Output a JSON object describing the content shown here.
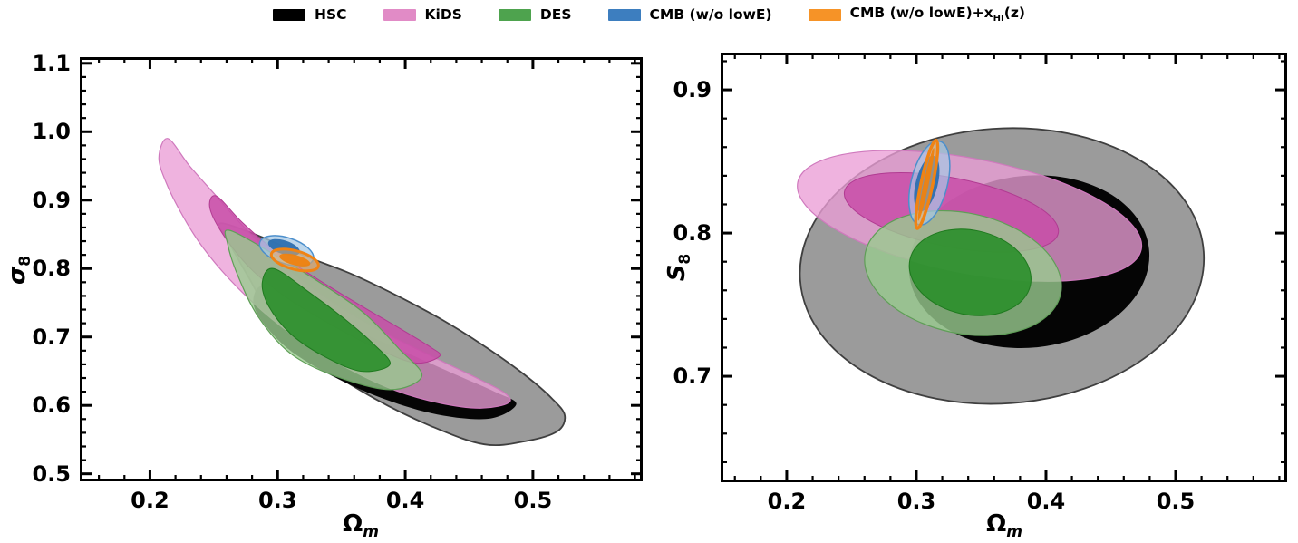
{
  "figure": {
    "background": "#ffffff"
  },
  "legend": {
    "items": [
      {
        "name": "hsc",
        "color": "#000000",
        "label_parts": [
          {
            "t": "HSC"
          }
        ]
      },
      {
        "name": "kids",
        "color": "#e18bc6",
        "label_parts": [
          {
            "t": "KiDS"
          }
        ]
      },
      {
        "name": "des",
        "color": "#4ea34e",
        "label_parts": [
          {
            "t": "DES"
          }
        ]
      },
      {
        "name": "cmb-wo-lowe",
        "color": "#3d7ebf",
        "label_parts": [
          {
            "t": "CMB (w/o lowE)"
          }
        ]
      },
      {
        "name": "cmb-wo-lowe-xhi",
        "color": "#f69327",
        "label_parts": [
          {
            "t": "CMB (w/o lowE)+"
          },
          {
            "t": "x",
            "i": true
          },
          {
            "t": "HI",
            "sub": true
          },
          {
            "t": "("
          },
          {
            "t": "z",
            "i": true
          },
          {
            "t": ")"
          }
        ]
      }
    ]
  },
  "chart_data": {
    "type": "contour",
    "title": "",
    "panels": [
      {
        "id": "sigma8-vs-omegam",
        "xlabel_parts": [
          {
            "t": "Ω"
          },
          {
            "t": "m",
            "sub": true,
            "i": true
          }
        ],
        "ylabel_parts": [
          {
            "t": "σ",
            "i": true
          },
          {
            "t": "8",
            "sub": true
          }
        ],
        "xlim": [
          0.145,
          0.586
        ],
        "ylim": [
          0.489,
          1.109
        ],
        "xticks": [
          0.2,
          0.3,
          0.4,
          0.5
        ],
        "xtick_labels": [
          "0.2",
          "0.3",
          "0.4",
          "0.5"
        ],
        "yticks": [
          0.5,
          0.6,
          0.7,
          0.8,
          0.9,
          1.0,
          1.1
        ],
        "ytick_labels": [
          "0.5",
          "0.6",
          "0.7",
          "0.8",
          "0.9",
          "1.0",
          "1.1"
        ],
        "minor_xticks": [
          0.16,
          0.18,
          0.22,
          0.24,
          0.26,
          0.28,
          0.32,
          0.34,
          0.36,
          0.38,
          0.42,
          0.44,
          0.46,
          0.48,
          0.52,
          0.54,
          0.56,
          0.58
        ],
        "minor_yticks": [
          0.52,
          0.54,
          0.56,
          0.58,
          0.62,
          0.64,
          0.66,
          0.68,
          0.72,
          0.74,
          0.76,
          0.78,
          0.82,
          0.84,
          0.86,
          0.88,
          0.92,
          0.94,
          0.96,
          0.98,
          1.02,
          1.04,
          1.06,
          1.08
        ],
        "contours": [
          {
            "name": "hsc-95",
            "shape": "polygon",
            "fill": "#9b9b9b",
            "opacity": 1,
            "stroke": "#3f3f3f",
            "stroke_width": 1.8,
            "points": [
              [
                0.255,
                0.866
              ],
              [
                0.285,
                0.848
              ],
              [
                0.322,
                0.818
              ],
              [
                0.358,
                0.792
              ],
              [
                0.394,
                0.76
              ],
              [
                0.43,
                0.724
              ],
              [
                0.464,
                0.684
              ],
              [
                0.494,
                0.644
              ],
              [
                0.515,
                0.61
              ],
              [
                0.525,
                0.585
              ],
              [
                0.519,
                0.562
              ],
              [
                0.495,
                0.548
              ],
              [
                0.462,
                0.543
              ],
              [
                0.42,
                0.57
              ],
              [
                0.376,
                0.61
              ],
              [
                0.332,
                0.662
              ],
              [
                0.298,
                0.722
              ],
              [
                0.278,
                0.785
              ],
              [
                0.262,
                0.838
              ]
            ]
          },
          {
            "name": "hsc-68",
            "shape": "polygon",
            "fill": "#050505",
            "opacity": 1,
            "stroke": "none",
            "stroke_width": 0,
            "points": [
              [
                0.29,
                0.775
              ],
              [
                0.32,
                0.745
              ],
              [
                0.355,
                0.715
              ],
              [
                0.395,
                0.682
              ],
              [
                0.437,
                0.647
              ],
              [
                0.47,
                0.62
              ],
              [
                0.487,
                0.602
              ],
              [
                0.467,
                0.581
              ],
              [
                0.43,
                0.585
              ],
              [
                0.39,
                0.605
              ],
              [
                0.348,
                0.638
              ],
              [
                0.31,
                0.68
              ],
              [
                0.287,
                0.725
              ],
              [
                0.281,
                0.755
              ]
            ]
          },
          {
            "name": "kids-95",
            "shape": "polygon",
            "fill": "#ea9ed6",
            "opacity": 0.78,
            "stroke": "#cf79bd",
            "stroke_width": 1.2,
            "points": [
              [
                0.214,
                0.99
              ],
              [
                0.231,
                0.95
              ],
              [
                0.25,
                0.91
              ],
              [
                0.27,
                0.868
              ],
              [
                0.292,
                0.826
              ],
              [
                0.318,
                0.785
              ],
              [
                0.348,
                0.745
              ],
              [
                0.385,
                0.705
              ],
              [
                0.425,
                0.668
              ],
              [
                0.458,
                0.638
              ],
              [
                0.478,
                0.618
              ],
              [
                0.481,
                0.604
              ],
              [
                0.46,
                0.596
              ],
              [
                0.428,
                0.603
              ],
              [
                0.392,
                0.622
              ],
              [
                0.355,
                0.654
              ],
              [
                0.318,
                0.695
              ],
              [
                0.288,
                0.738
              ],
              [
                0.262,
                0.785
              ],
              [
                0.241,
                0.832
              ],
              [
                0.226,
                0.876
              ],
              [
                0.213,
                0.924
              ],
              [
                0.207,
                0.962
              ]
            ]
          },
          {
            "name": "kids-68",
            "shape": "polygon",
            "fill": "#c84da8",
            "opacity": 0.85,
            "stroke": "#b13b92",
            "stroke_width": 1,
            "points": [
              [
                0.252,
                0.906
              ],
              [
                0.272,
                0.868
              ],
              [
                0.298,
                0.826
              ],
              [
                0.33,
                0.786
              ],
              [
                0.366,
                0.745
              ],
              [
                0.398,
                0.71
              ],
              [
                0.42,
                0.685
              ],
              [
                0.427,
                0.672
              ],
              [
                0.408,
                0.662
              ],
              [
                0.378,
                0.683
              ],
              [
                0.344,
                0.716
              ],
              [
                0.31,
                0.754
              ],
              [
                0.281,
                0.796
              ],
              [
                0.259,
                0.845
              ],
              [
                0.247,
                0.888
              ]
            ]
          },
          {
            "name": "des-95",
            "shape": "polygon",
            "fill": "#98cb8f",
            "opacity": 0.8,
            "stroke": "#5f9e57",
            "stroke_width": 1.2,
            "points": [
              [
                0.262,
                0.856
              ],
              [
                0.296,
                0.822
              ],
              [
                0.331,
                0.782
              ],
              [
                0.367,
                0.736
              ],
              [
                0.395,
                0.683
              ],
              [
                0.413,
                0.643
              ],
              [
                0.388,
                0.623
              ],
              [
                0.345,
                0.643
              ],
              [
                0.31,
                0.676
              ],
              [
                0.285,
                0.729
              ],
              [
                0.269,
                0.789
              ],
              [
                0.261,
                0.835
              ]
            ]
          },
          {
            "name": "des-68",
            "shape": "polygon",
            "fill": "#2c8f2c",
            "opacity": 0.92,
            "stroke": "#1f7a1f",
            "stroke_width": 1,
            "points": [
              [
                0.297,
                0.8
              ],
              [
                0.325,
                0.765
              ],
              [
                0.352,
                0.727
              ],
              [
                0.375,
                0.69
              ],
              [
                0.388,
                0.66
              ],
              [
                0.365,
                0.65
              ],
              [
                0.335,
                0.673
              ],
              [
                0.31,
                0.705
              ],
              [
                0.293,
                0.745
              ],
              [
                0.288,
                0.78
              ]
            ]
          },
          {
            "name": "cmb-95",
            "shape": "ellipse",
            "cx": 0.307,
            "cy": 0.826,
            "rx": 0.022,
            "ry": 0.019,
            "rot": 18,
            "fill": "#a6c8e6",
            "opacity": 0.75,
            "stroke": "#4c8fcc",
            "stroke_width": 1.5
          },
          {
            "name": "cmb-68",
            "shape": "ellipse",
            "cx": 0.305,
            "cy": 0.831,
            "rx": 0.013,
            "ry": 0.01,
            "rot": 18,
            "fill": "#2d6fb0",
            "opacity": 0.95,
            "stroke": "none",
            "stroke_width": 0
          },
          {
            "name": "cmb-xhi-95",
            "shape": "ellipse",
            "cx": 0.3135,
            "cy": 0.8125,
            "rx": 0.019,
            "ry": 0.0135,
            "rot": 15,
            "fill": "#f6ad5e",
            "opacity": 0.5,
            "stroke": "#f08314",
            "stroke_width": 3
          },
          {
            "name": "cmb-xhi-68",
            "shape": "ellipse",
            "cx": 0.3135,
            "cy": 0.8125,
            "rx": 0.0125,
            "ry": 0.0075,
            "rot": 15,
            "fill": "#ee820f",
            "opacity": 0.95,
            "stroke": "none",
            "stroke_width": 0
          }
        ]
      },
      {
        "id": "S8-vs-omegam",
        "xlabel_parts": [
          {
            "t": "Ω"
          },
          {
            "t": "m",
            "sub": true,
            "i": true
          }
        ],
        "ylabel_parts": [
          {
            "t": "S",
            "i": true
          },
          {
            "t": "8",
            "sub": true
          }
        ],
        "xlim": [
          0.149,
          0.586
        ],
        "ylim": [
          0.626,
          0.926
        ],
        "xticks": [
          0.2,
          0.3,
          0.4,
          0.5
        ],
        "xtick_labels": [
          "0.2",
          "0.3",
          "0.4",
          "0.5"
        ],
        "yticks": [
          0.7,
          0.8,
          0.9
        ],
        "ytick_labels": [
          "0.7",
          "0.8",
          "0.9"
        ],
        "minor_xticks": [
          0.16,
          0.18,
          0.22,
          0.24,
          0.26,
          0.28,
          0.32,
          0.34,
          0.36,
          0.38,
          0.42,
          0.44,
          0.46,
          0.48,
          0.52,
          0.54,
          0.56,
          0.58
        ],
        "minor_yticks": [
          0.64,
          0.66,
          0.68,
          0.72,
          0.74,
          0.76,
          0.78,
          0.82,
          0.84,
          0.86,
          0.88,
          0.92
        ],
        "contours": [
          {
            "name": "hsc-95",
            "shape": "ellipse",
            "cx": 0.366,
            "cy": 0.777,
            "rx": 0.156,
            "ry": 0.096,
            "rot": -4,
            "fill": "#9b9b9b",
            "opacity": 1,
            "stroke": "#3f3f3f",
            "stroke_width": 1.8
          },
          {
            "name": "hsc-68",
            "shape": "ellipse",
            "cx": 0.387,
            "cy": 0.78,
            "rx": 0.093,
            "ry": 0.06,
            "rot": -6,
            "fill": "#050505",
            "opacity": 1,
            "stroke": "none",
            "stroke_width": 0
          },
          {
            "name": "kids-95",
            "shape": "ellipse",
            "cx": 0.341,
            "cy": 0.812,
            "rx": 0.135,
            "ry": 0.04,
            "rot": 11,
            "fill": "#ea9ed6",
            "opacity": 0.78,
            "stroke": "#cf79bd",
            "stroke_width": 1.2
          },
          {
            "name": "kids-68",
            "shape": "ellipse",
            "cx": 0.327,
            "cy": 0.8145,
            "rx": 0.084,
            "ry": 0.024,
            "rot": 11,
            "fill": "#c84da8",
            "opacity": 0.85,
            "stroke": "#b13b92",
            "stroke_width": 1
          },
          {
            "name": "des-95",
            "shape": "ellipse",
            "cx": 0.336,
            "cy": 0.772,
            "rx": 0.077,
            "ry": 0.042,
            "rot": 12,
            "fill": "#98cb8f",
            "opacity": 0.8,
            "stroke": "#5f9e57",
            "stroke_width": 1.2
          },
          {
            "name": "des-68",
            "shape": "ellipse",
            "cx": 0.3415,
            "cy": 0.7725,
            "rx": 0.0475,
            "ry": 0.0295,
            "rot": 12,
            "fill": "#2c8f2c",
            "opacity": 0.92,
            "stroke": "#1f7a1f",
            "stroke_width": 1
          },
          {
            "name": "cmb-95",
            "shape": "ellipse",
            "cx": 0.31,
            "cy": 0.835,
            "rx": 0.014,
            "ry": 0.03,
            "rot": 14,
            "fill": "#a6c8e6",
            "opacity": 0.7,
            "stroke": "#4c8fcc",
            "stroke_width": 1.5
          },
          {
            "name": "cmb-68",
            "shape": "ellipse",
            "cx": 0.308,
            "cy": 0.8345,
            "rx": 0.0085,
            "ry": 0.02,
            "rot": 14,
            "fill": "#2d6fb0",
            "opacity": 0.95,
            "stroke": "none",
            "stroke_width": 0
          },
          {
            "name": "cmb-xhi-95",
            "shape": "ellipse",
            "cx": 0.308,
            "cy": 0.834,
            "rx": 0.0045,
            "ry": 0.0315,
            "rot": 12,
            "fill": "#f6ad5e",
            "opacity": 0.5,
            "stroke": "#f08314",
            "stroke_width": 3.5
          },
          {
            "name": "cmb-xhi-68",
            "shape": "ellipse",
            "cx": 0.3075,
            "cy": 0.834,
            "rx": 0.002,
            "ry": 0.026,
            "rot": 12,
            "fill": "#ee820f",
            "opacity": 0.95,
            "stroke": "none",
            "stroke_width": 0
          }
        ]
      }
    ]
  }
}
